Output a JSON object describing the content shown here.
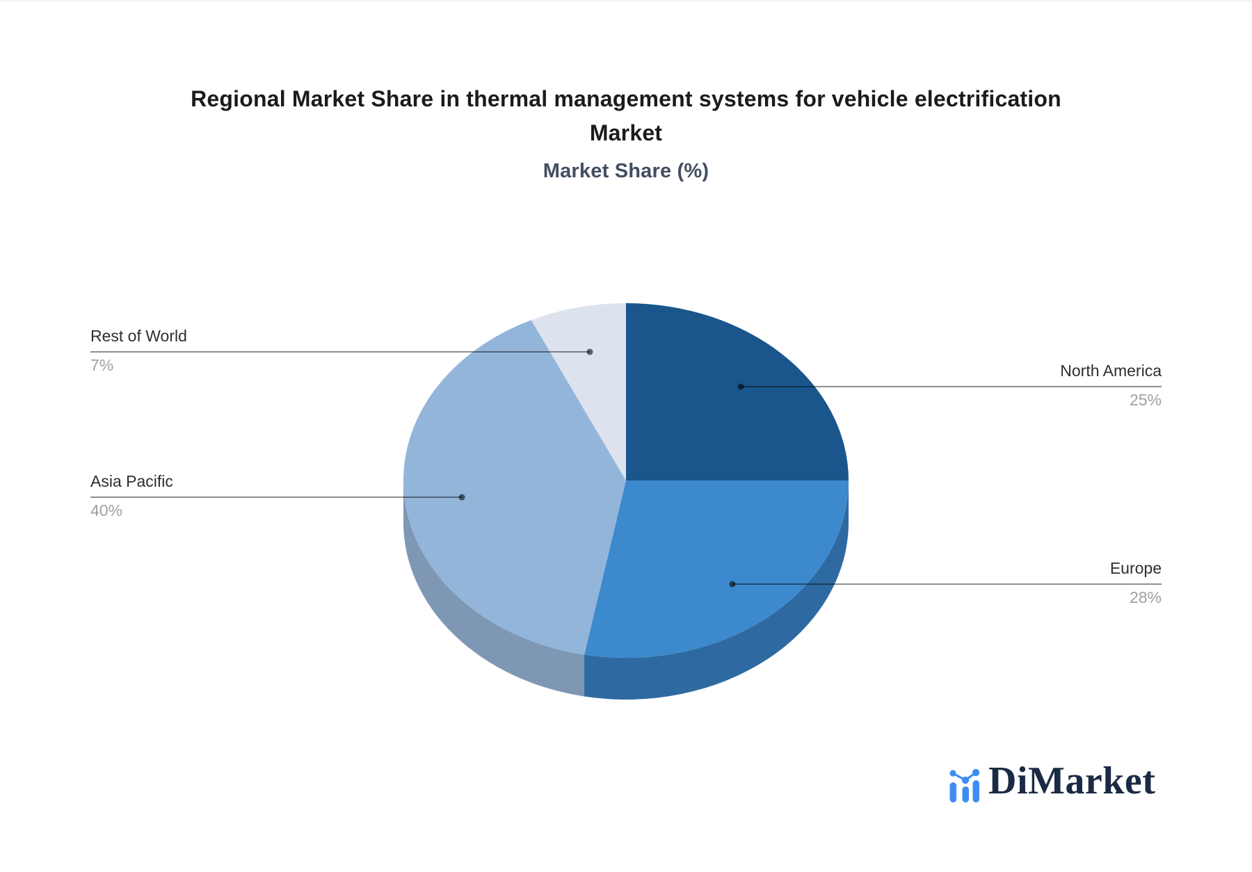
{
  "header": {
    "title_line1": "Regional Market Share in thermal management systems for vehicle electrification",
    "title_line2": "Market",
    "subtitle": "Market Share (%)"
  },
  "chart_data": {
    "type": "pie",
    "style": "3d",
    "title": "Regional Market Share in thermal management systems for vehicle electrification Market",
    "subtitle": "Market Share (%)",
    "unit": "%",
    "start_angle_deg": 0,
    "direction": "clockwise",
    "legend_position": "callout-labels",
    "slices": [
      {
        "label": "North America",
        "value": 25,
        "pct_label": "25%",
        "color": "#1a568c",
        "side_color": "#2e6aa1",
        "label_side": "right"
      },
      {
        "label": "Europe",
        "value": 28,
        "pct_label": "28%",
        "color": "#3d89cd",
        "side_color": "#2e6aa1",
        "label_side": "right"
      },
      {
        "label": "Asia Pacific",
        "value": 40,
        "pct_label": "40%",
        "color": "#93b5da",
        "side_color": "#7e97b4",
        "label_side": "left"
      },
      {
        "label": "Rest of World",
        "value": 7,
        "pct_label": "7%",
        "color": "#dde3ee",
        "side_color": "#c2cdde",
        "label_side": "left"
      }
    ]
  },
  "branding": {
    "logo_text": "DiMarket",
    "icon": "bar-line-chart-icon",
    "text_color": "#1b2a44",
    "accent_color": "#3f8df3"
  },
  "colors": {
    "title_text": "#1b1b1b",
    "subtitle_text": "#424e60",
    "label_text": "#2e2e2e",
    "pct_text": "#a0a0a0",
    "leader_line": "rgba(0,0,0,0.44)",
    "leader_dot": "rgba(0,0,0,0.58)",
    "background": "#ffffff"
  }
}
